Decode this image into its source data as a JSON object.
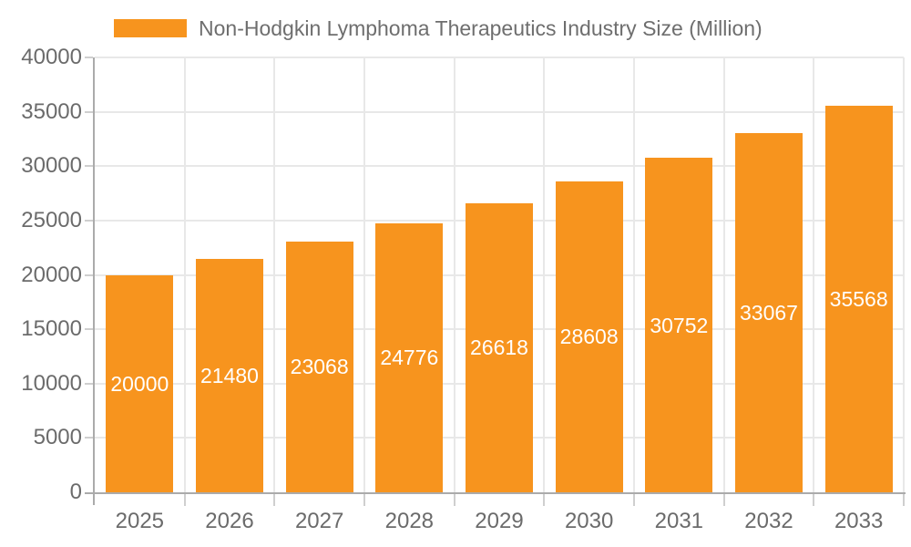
{
  "legend": {
    "label": "Non-Hodgkin Lymphoma Therapeutics Industry Size (Million)",
    "swatch_color": "#F7941E"
  },
  "chart_data": {
    "type": "bar",
    "title": "Non-Hodgkin Lymphoma Therapeutics Industry Size (Million)",
    "categories": [
      "2025",
      "2026",
      "2027",
      "2028",
      "2029",
      "2030",
      "2031",
      "2032",
      "2033"
    ],
    "values": [
      20000,
      21480,
      23068,
      24776,
      26618,
      28608,
      30752,
      33067,
      35568
    ],
    "xlabel": "",
    "ylabel": "",
    "ylim": [
      0,
      40000
    ],
    "yticks": [
      0,
      5000,
      10000,
      15000,
      20000,
      25000,
      30000,
      35000,
      40000
    ],
    "grid": true,
    "legend_position": "top",
    "bar_color": "#F7941E",
    "value_label_color": "#FFFFFF",
    "axis_text_color": "#6B6B6B"
  }
}
